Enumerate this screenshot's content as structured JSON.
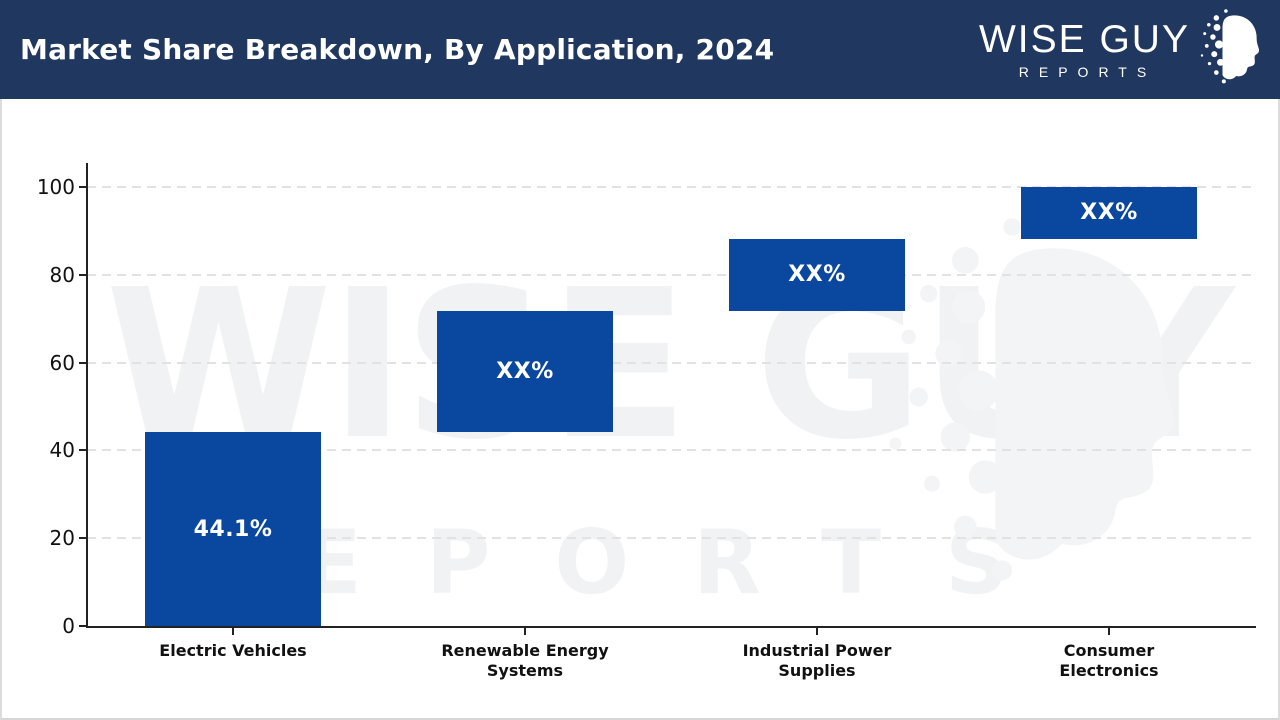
{
  "header": {
    "title": "Market Share Breakdown, By Application, 2024",
    "bg_color": "#20375f",
    "logo": {
      "line1": "WISE GUY",
      "line2": "REPORTS"
    }
  },
  "watermark": {
    "line1": "WISE GUY",
    "line2": "REPORTS"
  },
  "chart_data": {
    "type": "bar",
    "subtype": "waterfall",
    "title": "Market Share Breakdown, By Application, 2024",
    "categories": [
      "Electric Vehicles",
      "Renewable Energy\nSystems",
      "Industrial Power\nSupplies",
      "Consumer\nElectronics"
    ],
    "segments": [
      {
        "category": "Electric Vehicles",
        "start": 0,
        "end": 44.1,
        "label": "44.1%"
      },
      {
        "category": "Renewable Energy Systems",
        "start": 44.1,
        "end": 71.8,
        "label": "XX%"
      },
      {
        "category": "Industrial Power Supplies",
        "start": 71.8,
        "end": 88.2,
        "label": "XX%"
      },
      {
        "category": "Consumer Electronics",
        "start": 88.2,
        "end": 100,
        "label": "XX%"
      }
    ],
    "yticks": [
      0,
      20,
      40,
      60,
      80,
      100
    ],
    "ylim": [
      0,
      100
    ],
    "xlabel": "",
    "ylabel": "",
    "legend": false,
    "grid": "horizontal-dashed",
    "bar_color": "#0a479e",
    "bar_label_color": "#ffffff",
    "axis_color": "#222222",
    "gridline_color": "#e2e2e2"
  }
}
